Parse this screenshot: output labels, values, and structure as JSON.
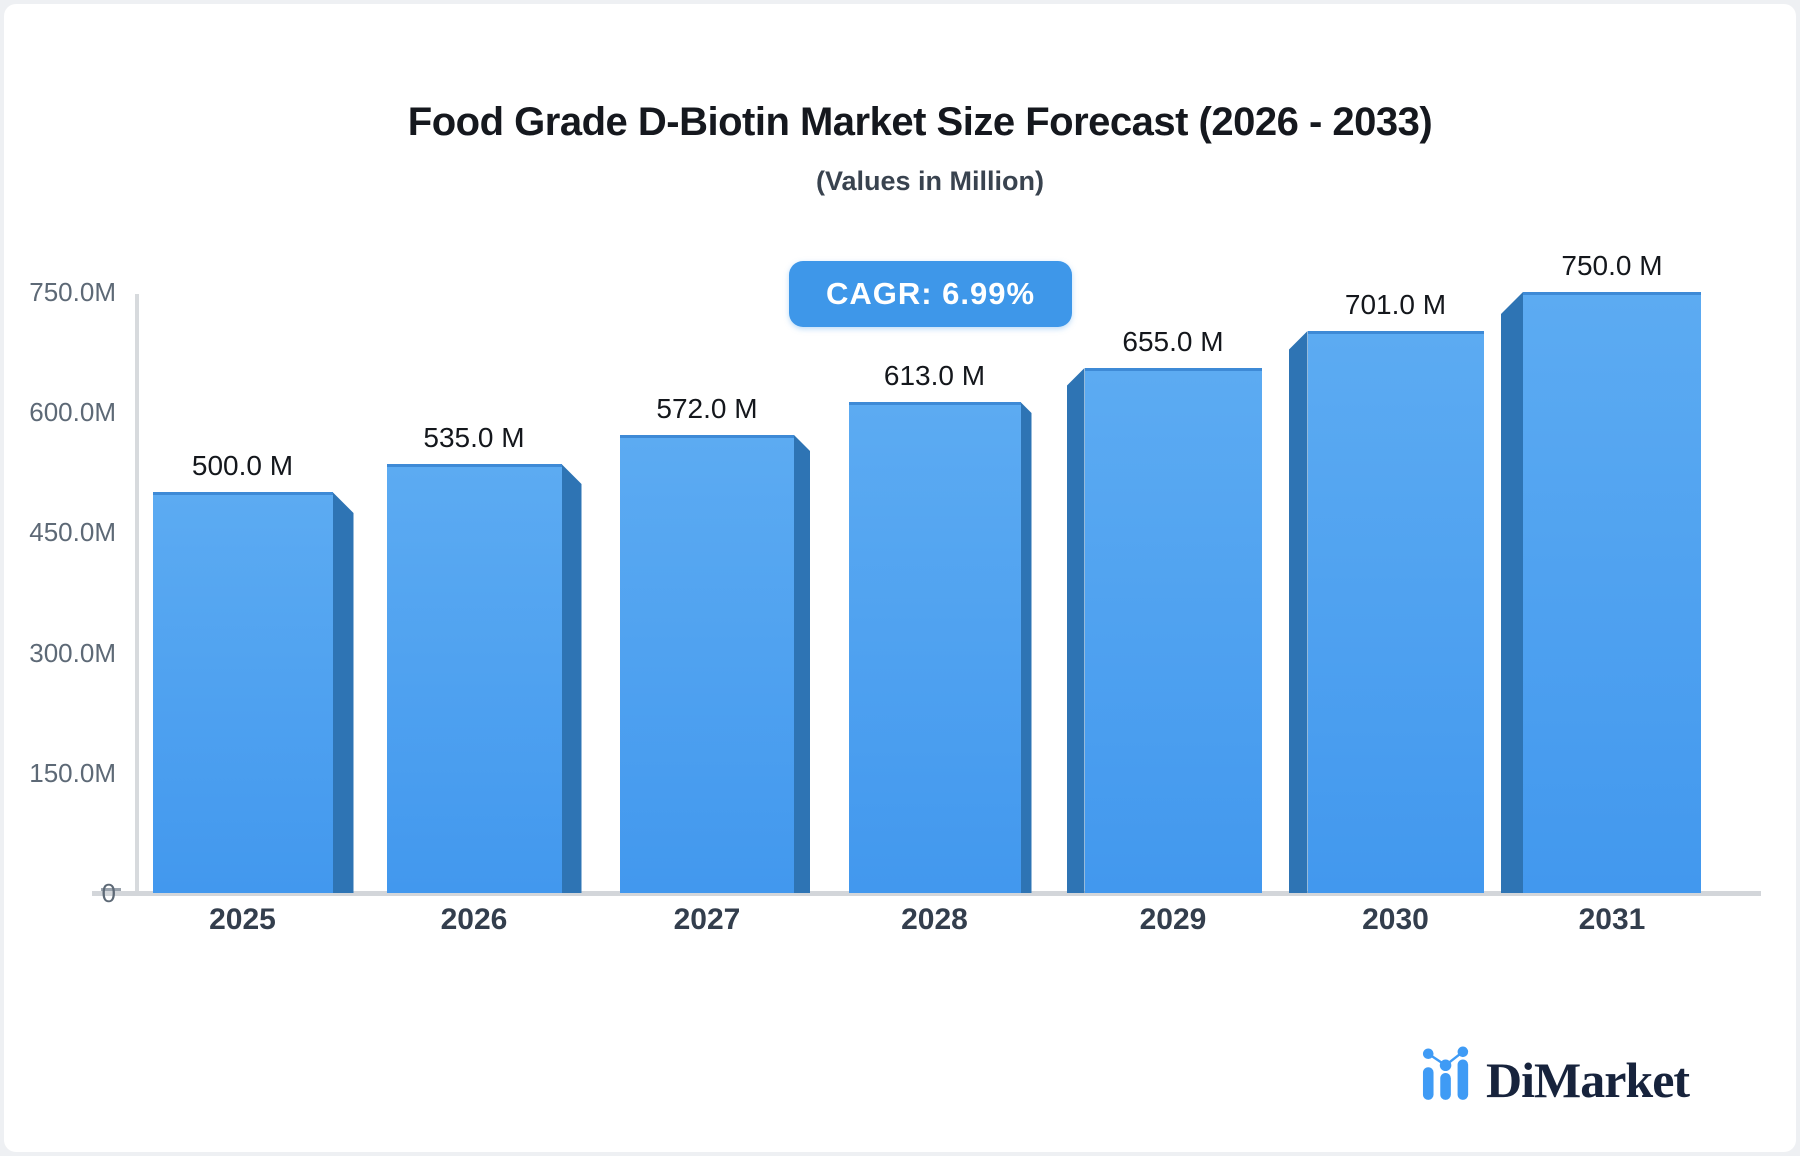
{
  "page": {
    "background": "#eef0f3",
    "card_background": "#ffffff"
  },
  "header": {
    "title": "Food Grade D-Biotin Market Size Forecast (2026 - 2033)",
    "subtitle": "(Values in Million)"
  },
  "badge": {
    "label": "CAGR: 6.99%",
    "color": "#3e97e9"
  },
  "chart_data": {
    "type": "bar",
    "title": "Food Grade D-Biotin Market Size Forecast (2026 - 2033)",
    "subtitle": "(Values in Million)",
    "xlabel": "",
    "ylabel": "",
    "categories": [
      "2025",
      "2026",
      "2027",
      "2028",
      "2029",
      "2030",
      "2031"
    ],
    "values": [
      500,
      535,
      572,
      613,
      655,
      701,
      750
    ],
    "value_labels": [
      "500.0 M",
      "535.0 M",
      "572.0 M",
      "613.0 M",
      "655.0 M",
      "701.0 M",
      "750.0 M"
    ],
    "y_ticks": [
      {
        "value": 750,
        "label": "750.0M"
      },
      {
        "value": 600,
        "label": "600.0M"
      },
      {
        "value": 450,
        "label": "450.0M"
      },
      {
        "value": 300,
        "label": "300.0M"
      },
      {
        "value": 150,
        "label": "150.0M"
      },
      {
        "value": 0,
        "label": "0"
      }
    ],
    "ylim": [
      0,
      750
    ],
    "grid": false,
    "legend": false,
    "annotation": "CAGR: 6.99%",
    "bar_color": "#55a7f0",
    "bar_side_color": "#2e74b4"
  },
  "branding": {
    "logo_text": "DiMarket",
    "logo_icon": "bar-chart-logo-icon",
    "logo_text_color": "#17233c",
    "logo_accent_color": "#3f9bf5"
  }
}
